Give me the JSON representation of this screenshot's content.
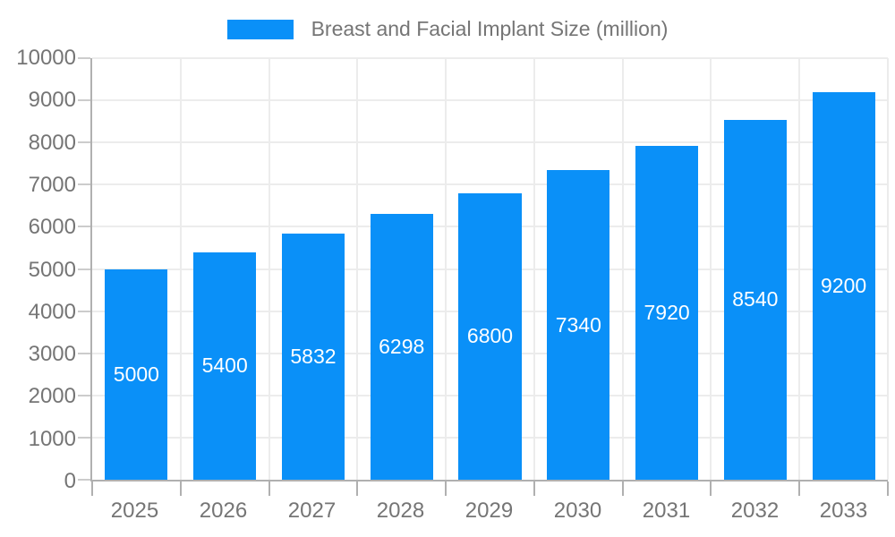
{
  "chart_data": {
    "type": "bar",
    "title": "Breast and Facial Implant Size (million)",
    "categories": [
      "2025",
      "2026",
      "2027",
      "2028",
      "2029",
      "2030",
      "2031",
      "2032",
      "2033"
    ],
    "values": [
      5000,
      5400,
      5832,
      6298,
      6800,
      7340,
      7920,
      8540,
      9200
    ],
    "xlabel": "",
    "ylabel": "",
    "ylim": [
      0,
      10000
    ],
    "y_ticks": [
      0,
      1000,
      2000,
      3000,
      4000,
      5000,
      6000,
      7000,
      8000,
      9000,
      10000
    ],
    "grid": "on",
    "legend_position": "top-center",
    "bar_value_labels": [
      "5000",
      "5400",
      "5832",
      "6298",
      "6800",
      "7340",
      "7920",
      "8540",
      "9200"
    ],
    "bar_value_label_placement": "centered-inside-bar",
    "colors": {
      "bar": "#0a90f8",
      "bar_label_text": "#ffffff",
      "axis_text": "#757575",
      "axis_line": "#b0b0b0",
      "gridline": "#ececec",
      "y_tick": "#cccccc",
      "background": "#ffffff"
    }
  }
}
